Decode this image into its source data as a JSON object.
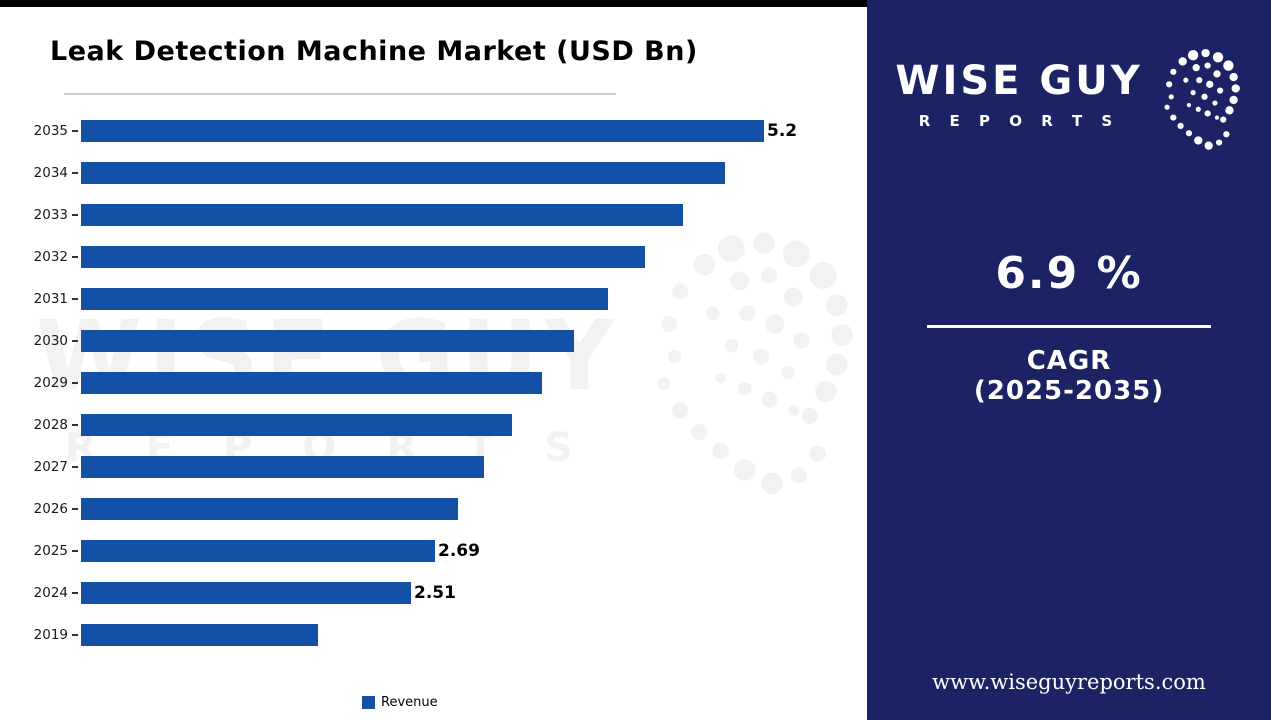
{
  "chart_data": {
    "type": "bar",
    "orientation": "horizontal",
    "title": "Leak Detection Machine Market (USD Bn)",
    "categories": [
      "2035",
      "2034",
      "2033",
      "2032",
      "2031",
      "2030",
      "2029",
      "2028",
      "2027",
      "2026",
      "2025",
      "2024",
      "2019"
    ],
    "values": [
      5.2,
      4.9,
      4.58,
      4.29,
      4.01,
      3.75,
      3.51,
      3.28,
      3.07,
      2.87,
      2.69,
      2.51,
      1.8
    ],
    "value_labels": [
      "5.2",
      "",
      "",
      "",
      "",
      "",
      "",
      "",
      "",
      "",
      "2.69",
      "2.51",
      ""
    ],
    "xlim": [
      0,
      5.6
    ],
    "grid": false,
    "legend_position": "bottom",
    "bar_color": "#1450a5",
    "legend": [
      {
        "label": "Revenue",
        "color": "#1450a5"
      }
    ]
  },
  "watermark": {
    "line1": "WISE GUY",
    "line2": "R E P O R T S"
  },
  "brand": {
    "panel_color": "#1b2364",
    "logo_line1": "WISE GUY",
    "logo_line2": "R E P O R T S",
    "cagr_value": "6.9 %",
    "cagr_label": "CAGR",
    "cagr_period": "(2025-2035)",
    "website": "www.wiseguyreports.com"
  }
}
